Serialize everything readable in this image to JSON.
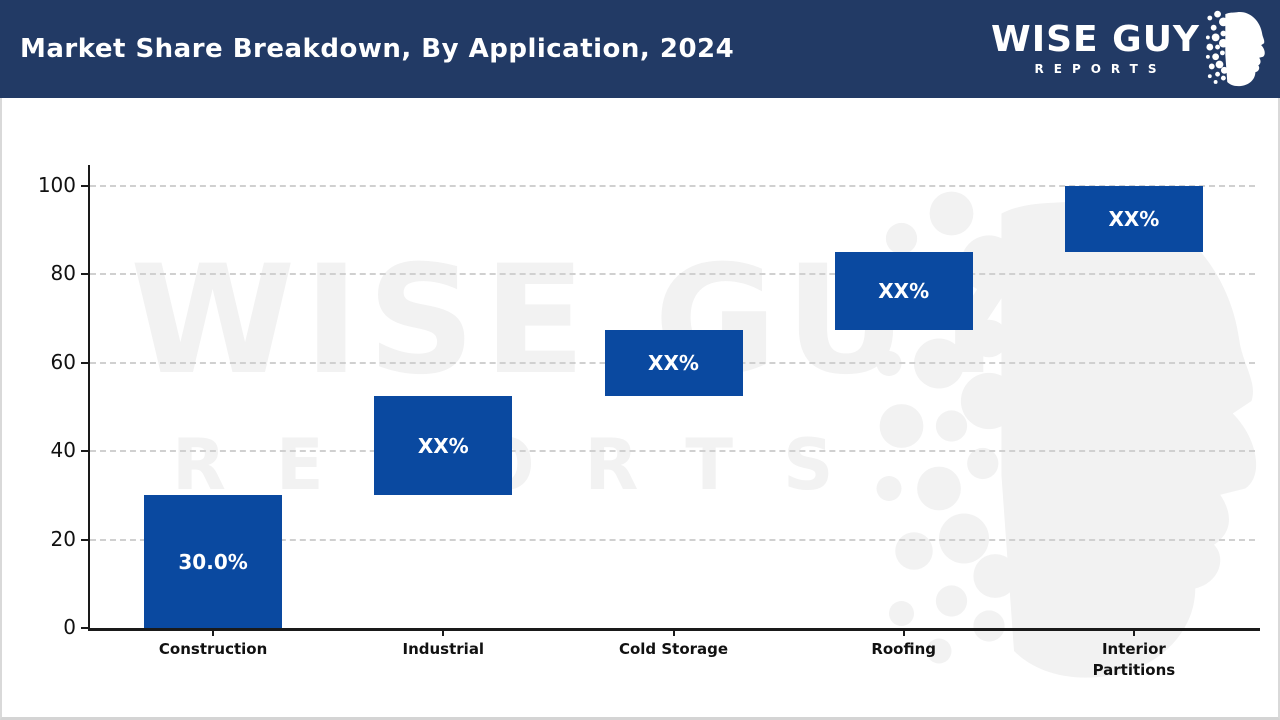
{
  "header": {
    "title": "Market Share Breakdown, By Application, 2024",
    "logo": {
      "name": "WISE GUY",
      "tagline": "REPORTS"
    }
  },
  "watermark": {
    "line1": "WISE GUY",
    "line2": "REPORTS"
  },
  "colors": {
    "header_bg": "#223A65",
    "bar": "#0A49A0",
    "bar_label": "#FFFFFF",
    "grid": "#D0D0D0",
    "axis": "#1A1A1A",
    "watermark": "#F2F2F2",
    "border": "#D9D9D9"
  },
  "chart_data": {
    "type": "bar",
    "subtype": "floating-waterfall",
    "title": "Market Share Breakdown, By Application, 2024",
    "categories": [
      "Construction",
      "Industrial",
      "Cold Storage",
      "Roofing",
      "Interior Partitions"
    ],
    "segments": [
      {
        "category": "Construction",
        "start": 0,
        "end": 30,
        "label": "30.0%"
      },
      {
        "category": "Industrial",
        "start": 30,
        "end": 52.5,
        "label": "XX%"
      },
      {
        "category": "Cold Storage",
        "start": 52.5,
        "end": 67.5,
        "label": "XX%"
      },
      {
        "category": "Roofing",
        "start": 67.5,
        "end": 85,
        "label": "XX%"
      },
      {
        "category": "Interior Partitions",
        "start": 85,
        "end": 100,
        "label": "XX%"
      }
    ],
    "xlabel": "",
    "ylabel": "",
    "yticks": [
      0,
      20,
      40,
      60,
      80,
      100
    ],
    "ylim": [
      0,
      105
    ],
    "grid": "horizontal-dashed",
    "legend": "none",
    "bar_color": "#0A49A0",
    "value_label_color": "#FFFFFF"
  }
}
